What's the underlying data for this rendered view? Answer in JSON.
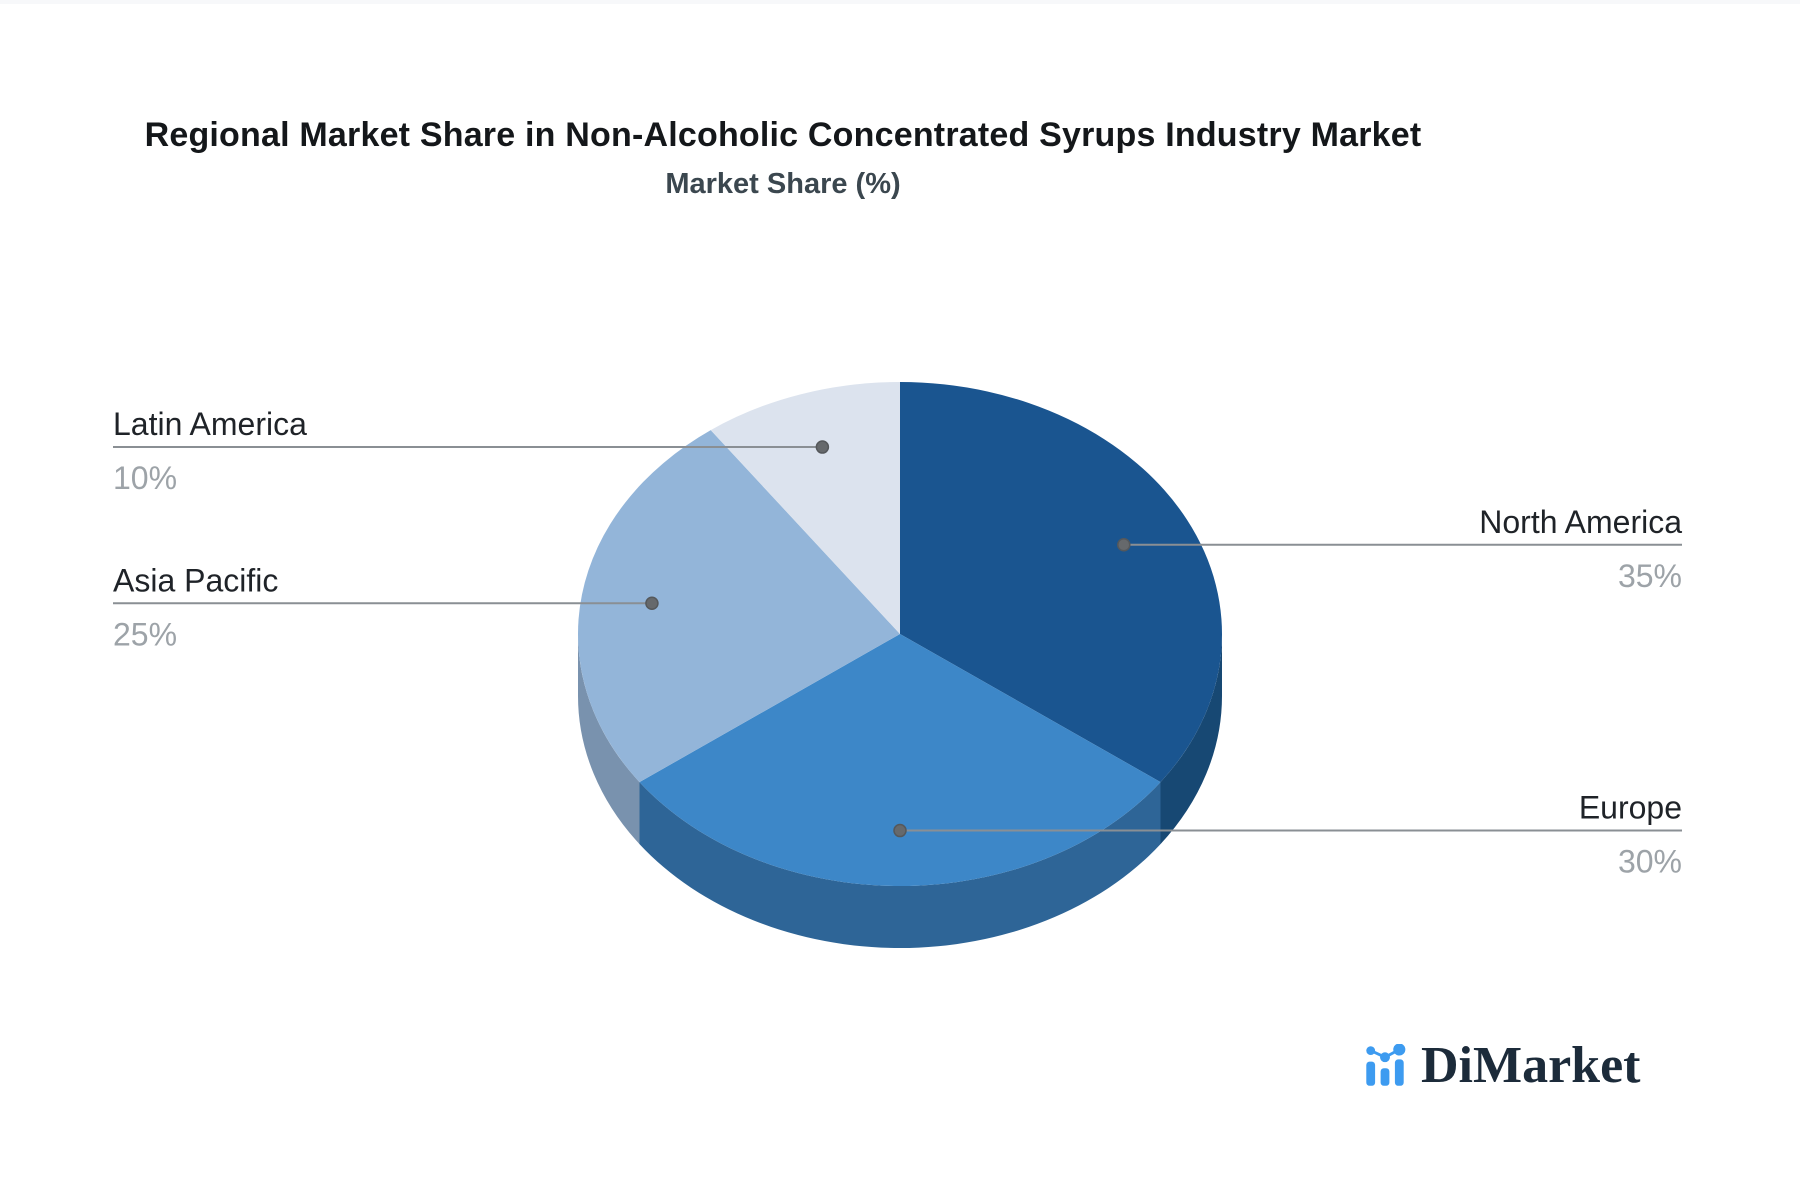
{
  "header": {
    "title": "Regional Market Share in Non-Alcoholic Concentrated Syrups Industry Market",
    "subtitle": "Market Share (%)"
  },
  "chart_data": {
    "type": "pie",
    "style": "3d-pie",
    "title": "Regional Market Share in Non-Alcoholic Concentrated Syrups Industry Market",
    "subtitle": "Market Share (%)",
    "unit": "%",
    "start_angle_deg": 0,
    "direction": "clockwise",
    "labels_outside": true,
    "legend_position": "none",
    "segments": [
      {
        "label": "North America",
        "value": 35,
        "display_value": "35%",
        "color": "#1A5590",
        "side_color": "#174873"
      },
      {
        "label": "Europe",
        "value": 30,
        "display_value": "30%",
        "color": "#3D87C8",
        "side_color": "#2E6597"
      },
      {
        "label": "Asia Pacific",
        "value": 25,
        "display_value": "25%",
        "color": "#93B5D9",
        "side_color": "#7992AE"
      },
      {
        "label": "Latin America",
        "value": 10,
        "display_value": "10%",
        "color": "#DCE3EE",
        "side_color": "#B9C5D6"
      }
    ]
  },
  "watermark": {
    "brand": "DiMarket",
    "icon": "bar-line-chart-icon",
    "icon_color": "#3D9BF0",
    "text_color": "#1C2B3A"
  },
  "colors": {
    "background": "#FFFFFF",
    "top_strip": "#F7F8FA",
    "title_text": "#14171A",
    "subtitle_text": "#3B474F",
    "label_name_text": "#1F2328",
    "label_value_text": "#9DA3A8",
    "leader_line": "#8A8F94",
    "leader_dot": "#66696C"
  }
}
